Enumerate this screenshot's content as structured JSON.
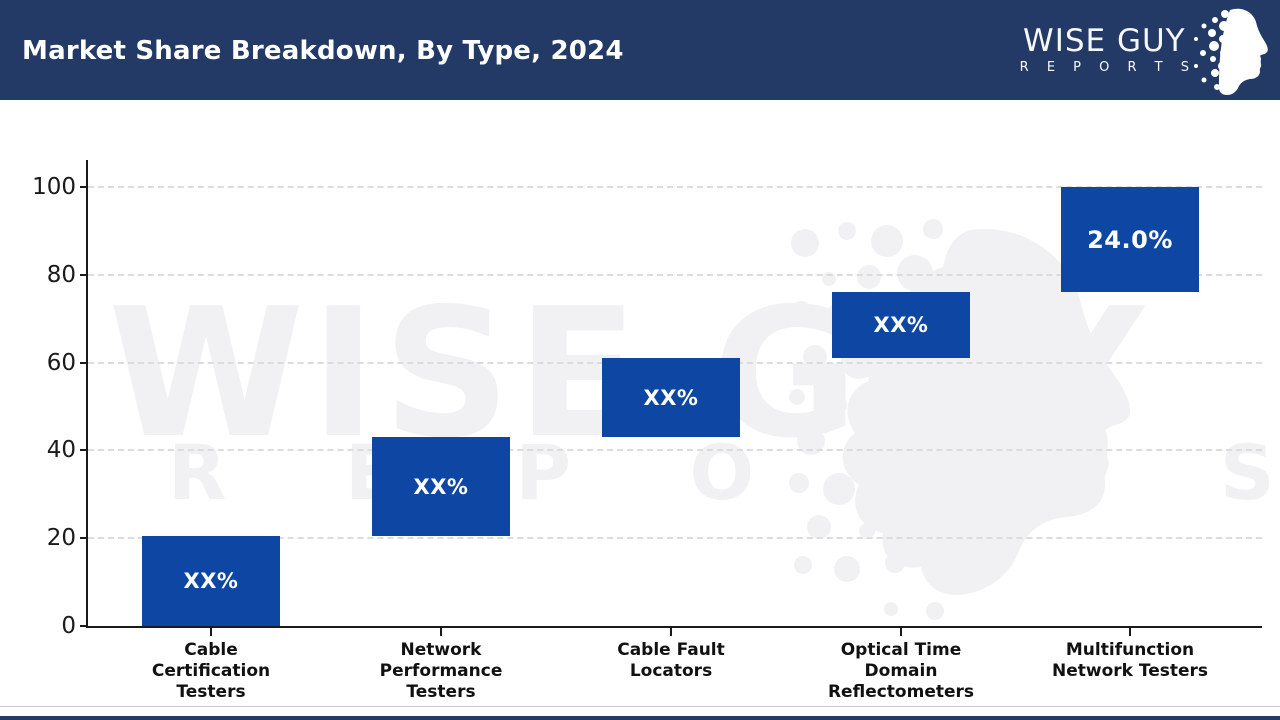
{
  "header": {
    "title": "Market Share Breakdown, By Type, 2024",
    "logo": {
      "line1": "WISE GUY",
      "line2": "R E P O R T S"
    }
  },
  "watermark": {
    "line1": "WISE GUY",
    "line2": "R E P O R T S"
  },
  "colors": {
    "header_bg": "#233a66",
    "bar": "#0d47a3",
    "grid": "#dcdcdc",
    "axis": "#1a1a1a",
    "text": "#111111",
    "bar_label": "#ffffff",
    "watermark": "#f1f1f3"
  },
  "chart_data": {
    "type": "bar",
    "subtype": "waterfall",
    "title": "Market Share Breakdown, By Type, 2024",
    "categories": [
      [
        "Cable",
        "Certification",
        "Testers"
      ],
      [
        "Network",
        "Performance",
        "Testers"
      ],
      [
        "Cable Fault",
        "Locators"
      ],
      [
        "Optical Time",
        "Domain",
        "Reflectometers"
      ],
      [
        "Multifunction",
        "Network Testers"
      ]
    ],
    "segments": [
      {
        "start": 0,
        "end": 20.5
      },
      {
        "start": 20.5,
        "end": 43
      },
      {
        "start": 43,
        "end": 61
      },
      {
        "start": 61,
        "end": 76
      },
      {
        "start": 76,
        "end": 100
      }
    ],
    "values": [
      20.5,
      22.5,
      18,
      15,
      24
    ],
    "bar_labels": [
      "XX%",
      "XX%",
      "XX%",
      "XX%",
      "24.0%"
    ],
    "ylabel": "",
    "xlabel": "",
    "ylim": [
      0,
      100
    ],
    "yticks": [
      0,
      20,
      40,
      60,
      80,
      100
    ],
    "grid": "horizontal-dashed",
    "legend": null
  }
}
